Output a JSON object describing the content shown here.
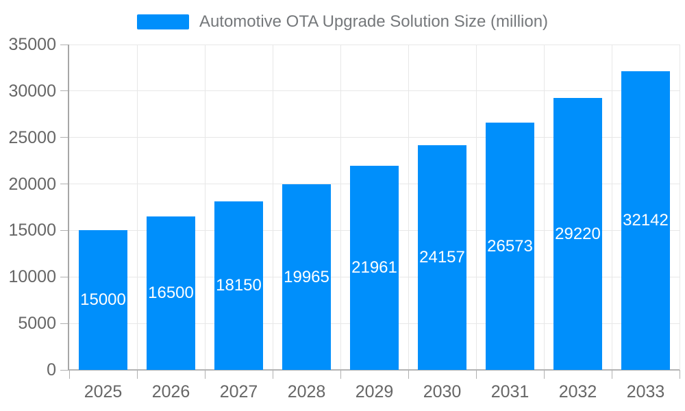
{
  "colors": {
    "bar": "#008FFB",
    "grid": "#e7e7e7",
    "axis": "#a6a6a6",
    "axis_label": "#666666",
    "legend_text": "#75787b",
    "data_label": "#ffffff",
    "background": "#ffffff"
  },
  "chart_data": {
    "type": "bar",
    "title": "Automotive OTA Upgrade Solution Size (million)",
    "categories": [
      "2025",
      "2026",
      "2027",
      "2028",
      "2029",
      "2030",
      "2031",
      "2032",
      "2033"
    ],
    "series": [
      {
        "name": "Automotive OTA Upgrade Solution Size (million)",
        "values": [
          15000,
          16500,
          18150,
          19965,
          21961,
          24157,
          26573,
          29220,
          32142
        ]
      }
    ],
    "xlabel": "",
    "ylabel": "",
    "ylim": [
      0,
      35000
    ],
    "y_tick_step": 5000,
    "y_ticks": [
      "0",
      "5000",
      "10000",
      "15000",
      "20000",
      "25000",
      "30000",
      "35000"
    ],
    "grid": "on",
    "legend_position": "top",
    "data_labels": "inside-center"
  }
}
